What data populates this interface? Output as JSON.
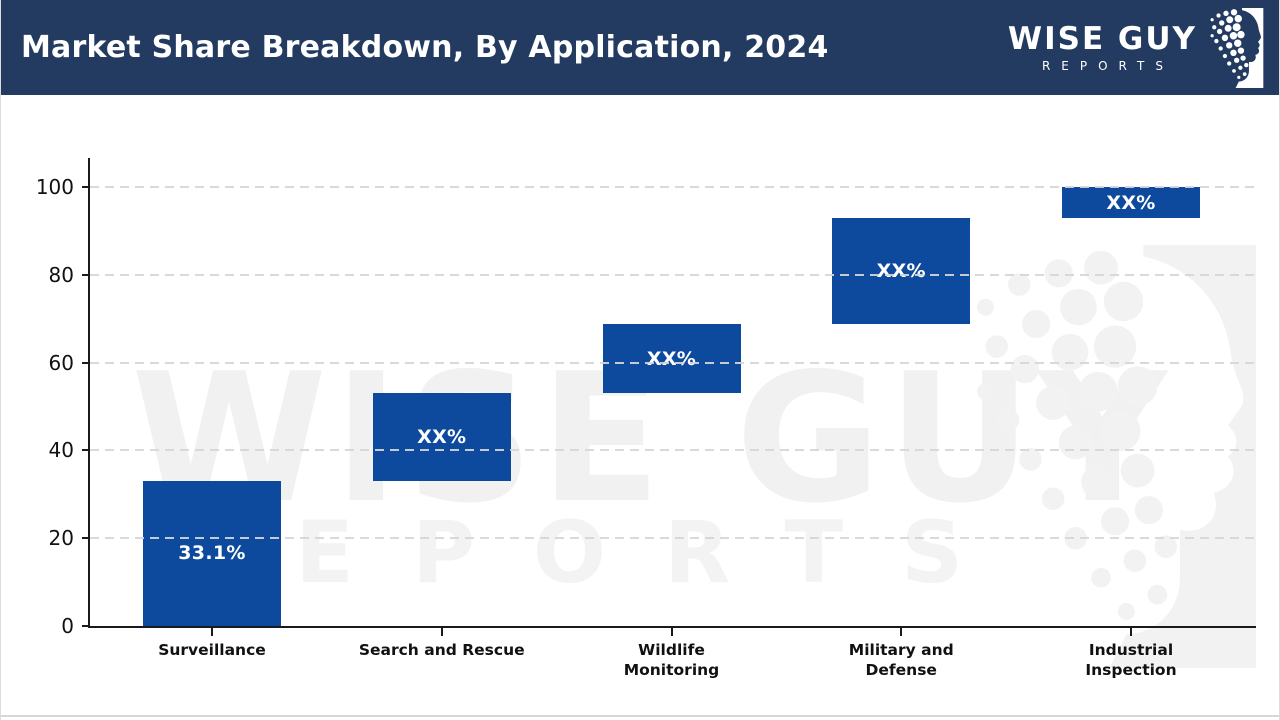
{
  "header": {
    "title": "Market Share Breakdown, By Application, 2024",
    "logo": {
      "line1": "WISE GUY",
      "line2": "REPORTS"
    }
  },
  "watermark": {
    "line1": "WISE GUY",
    "line2": "REPORTS"
  },
  "colors": {
    "header_bg": "#233a61",
    "bar": "#0d4a9e",
    "grid": "#d9d9d9",
    "axis": "#1a1a1a",
    "value_label": "#ffffff",
    "watermark": "#f1f1f1"
  },
  "chart_data": {
    "type": "bar",
    "subtype": "waterfall",
    "title": "Market Share Breakdown, By Application, 2024",
    "categories": [
      "Surveillance",
      "Search and Rescue",
      "Wildlife Monitoring",
      "Military and Defense",
      "Industrial Inspection"
    ],
    "category_lines": [
      [
        "Surveillance"
      ],
      [
        "Search and Rescue"
      ],
      [
        "Wildlife",
        "Monitoring"
      ],
      [
        "Military and",
        "Defense"
      ],
      [
        "Industrial",
        "Inspection"
      ]
    ],
    "segments": [
      {
        "category": "Surveillance",
        "start": 0,
        "end": 33.1,
        "label": "33.1%"
      },
      {
        "category": "Search and Rescue",
        "start": 33.1,
        "end": 53.1,
        "label": "XX%"
      },
      {
        "category": "Wildlife Monitoring",
        "start": 53.1,
        "end": 68.7,
        "label": "XX%"
      },
      {
        "category": "Military and Defense",
        "start": 68.7,
        "end": 92.9,
        "label": "XX%"
      },
      {
        "category": "Industrial Inspection",
        "start": 92.9,
        "end": 100,
        "label": "XX%"
      }
    ],
    "yticks": [
      0,
      20,
      40,
      60,
      80,
      100
    ],
    "ylim": [
      0,
      105
    ],
    "xlabel": "",
    "ylabel": "",
    "grid": "dashed-horizontal",
    "legend": "none",
    "bar_color": "#0d4a9e",
    "value_label_color": "#ffffff"
  }
}
